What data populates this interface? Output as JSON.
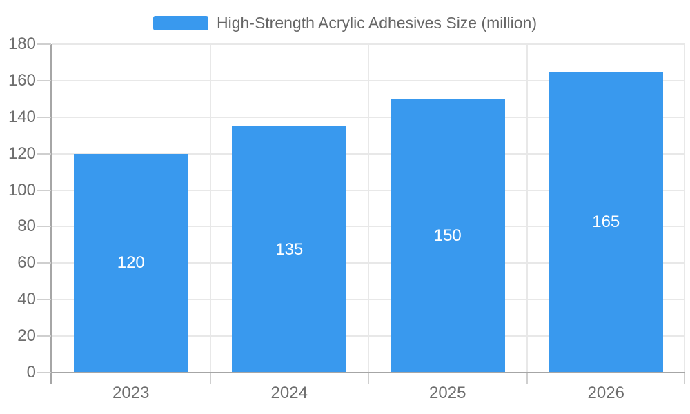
{
  "legend": {
    "items": [
      {
        "label": "High-Strength Acrylic Adhesives Size (million)"
      }
    ]
  },
  "chart_data": {
    "type": "bar",
    "title": "High-Strength Acrylic Adhesives Size (million)",
    "categories": [
      "2023",
      "2024",
      "2025",
      "2026"
    ],
    "values": [
      120,
      135,
      150,
      165
    ],
    "series": [
      {
        "name": "High-Strength Acrylic Adhesives Size (million)",
        "values": [
          120,
          135,
          150,
          165
        ]
      }
    ],
    "xlabel": "",
    "ylabel": "",
    "ylim": [
      0,
      180
    ],
    "yticks": [
      0,
      20,
      40,
      60,
      80,
      100,
      120,
      140,
      160,
      180
    ],
    "show_value_labels": true,
    "grid": true,
    "legend_position": "top center"
  },
  "colors": {
    "bar": "#3999ee",
    "grid": "#e8e8e8",
    "axis": "#a6a6a6",
    "tick": "#cfcfcf",
    "axis_label": "#6e6e6e",
    "legend_text": "#666666",
    "value_label": "#ffffff",
    "background": "#ffffff"
  }
}
